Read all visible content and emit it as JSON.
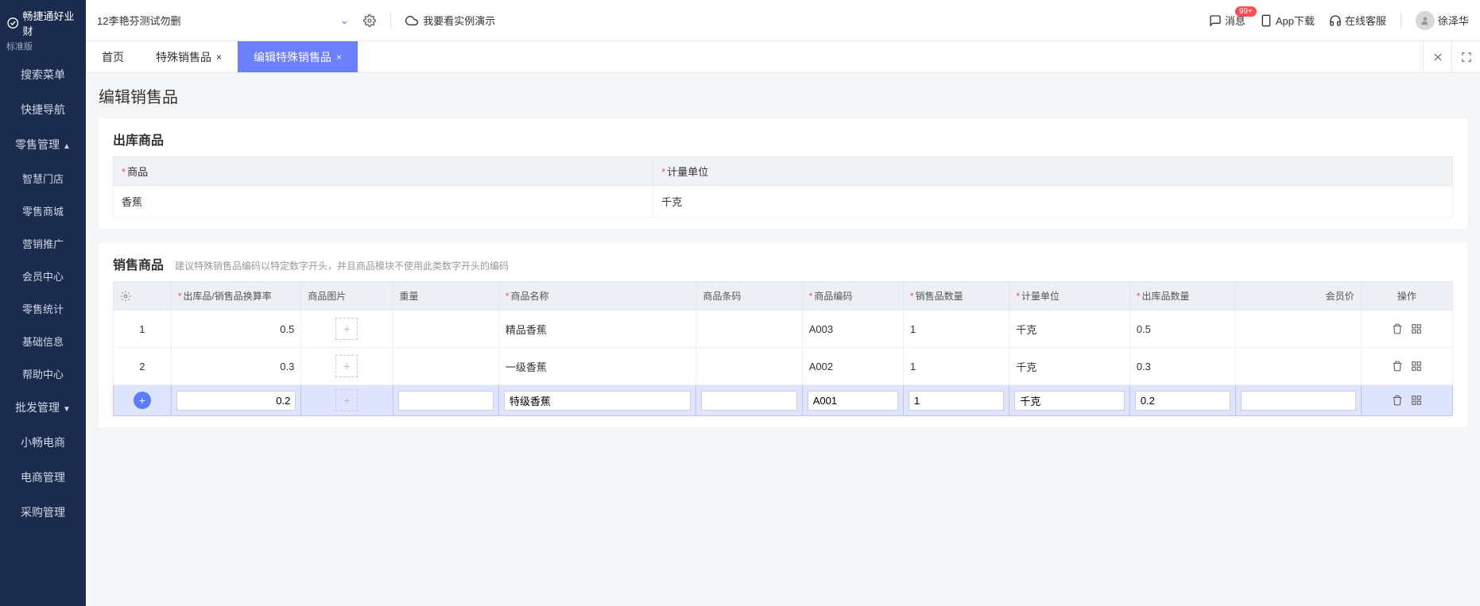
{
  "brand": {
    "name": "畅捷通好业财",
    "version": "标准版"
  },
  "header": {
    "tenant": "12李艳芬测试勿删",
    "demo_link": "我要看实例演示",
    "badge": "99+",
    "actions": {
      "messages": "消息",
      "app_download": "App下载",
      "online_service": "在线客服"
    },
    "user_name": "徐泽华"
  },
  "sidebar": {
    "search": "搜索菜单",
    "quicknav": "快捷导航",
    "retail_mgmt": "零售管理",
    "retail_children": {
      "smart_store": "智慧门店",
      "retail_mall": "零售商城",
      "marketing": "营销推广",
      "member_center": "会员中心",
      "retail_stats": "零售统计",
      "basic_info": "基础信息",
      "help_center": "帮助中心"
    },
    "wholesale": "批发管理",
    "xiaochang_ecom": "小畅电商",
    "ecom_mgmt": "电商管理",
    "purchase_mgmt": "采购管理"
  },
  "tabs": {
    "home": "首页",
    "special_sales": "特殊销售品",
    "edit_special_sales": "编辑特殊销售品"
  },
  "page": {
    "title": "编辑销售品"
  },
  "outbound": {
    "section_title": "出库商品",
    "columns": {
      "product": "商品",
      "unit": "计量单位"
    },
    "row": {
      "product": "香蕉",
      "unit": "千克"
    }
  },
  "sales": {
    "section_title": "销售商品",
    "hint": "建议特殊销售品编码以特定数字开头，并且商品模块不使用此类数字开头的编码",
    "columns": {
      "rate": "出库品/销售品换算率",
      "image": "商品图片",
      "weight": "重量",
      "name": "商品名称",
      "barcode": "商品条码",
      "code": "商品编码",
      "qty": "销售品数量",
      "unit": "计量单位",
      "out_qty": "出库品数量",
      "member_price": "会员价",
      "actions": "操作"
    },
    "rows": [
      {
        "idx": "1",
        "rate": "0.5",
        "name": "精品香蕉",
        "barcode": "",
        "code": "A003",
        "qty": "1",
        "unit": "千克",
        "out_qty": "0.5",
        "member_price": ""
      },
      {
        "idx": "2",
        "rate": "0.3",
        "name": "一级香蕉",
        "barcode": "",
        "code": "A002",
        "qty": "1",
        "unit": "千克",
        "out_qty": "0.3",
        "member_price": ""
      },
      {
        "idx": "",
        "rate": "0.2",
        "name": "特级香蕉",
        "barcode": "",
        "code": "A001",
        "qty": "1",
        "unit": "千克",
        "out_qty": "0.2",
        "member_price": "",
        "selected": true
      }
    ]
  },
  "colors": {
    "sidebar_bg": "#1a2b4d",
    "active_tab_bg": "#6b7fff",
    "row_selected_bg": "#dfe5ff",
    "badge_bg": "#ff4d4f",
    "required_star": "#ff4d4f",
    "header_bg": "#eceff4"
  }
}
